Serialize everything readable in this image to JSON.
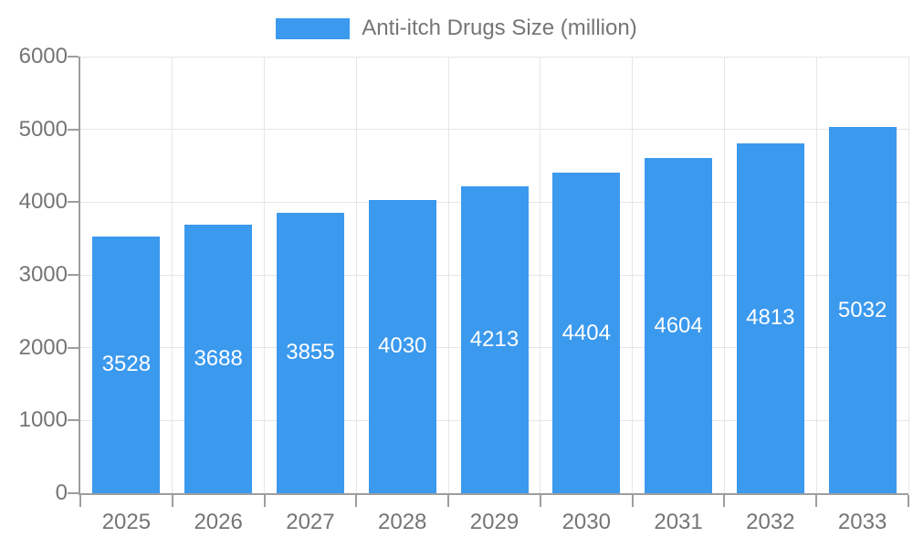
{
  "chart_data": {
    "type": "bar",
    "title": "Anti-itch Drugs Size (million)",
    "categories": [
      "2025",
      "2026",
      "2027",
      "2028",
      "2029",
      "2030",
      "2031",
      "2032",
      "2033"
    ],
    "series": [
      {
        "name": "Anti-itch Drugs Size (million)",
        "values": [
          3528,
          3688,
          3855,
          4030,
          4213,
          4404,
          4604,
          4813,
          5032
        ]
      }
    ],
    "xlabel": "",
    "ylabel": "",
    "ylim": [
      0,
      6000
    ],
    "yticks": [
      0,
      1000,
      2000,
      3000,
      4000,
      5000,
      6000
    ],
    "grid": true,
    "legend_position": "top",
    "bar_labels_inside": true
  },
  "colors": {
    "bar": "#3B99EE",
    "bar_label": "#FFFFFF",
    "axis_text": "#757575",
    "axis_line": "#9E9E9E",
    "tick": "#9E9E9E",
    "gridline": "#E6E6E6",
    "background": "#FFFFFF"
  }
}
